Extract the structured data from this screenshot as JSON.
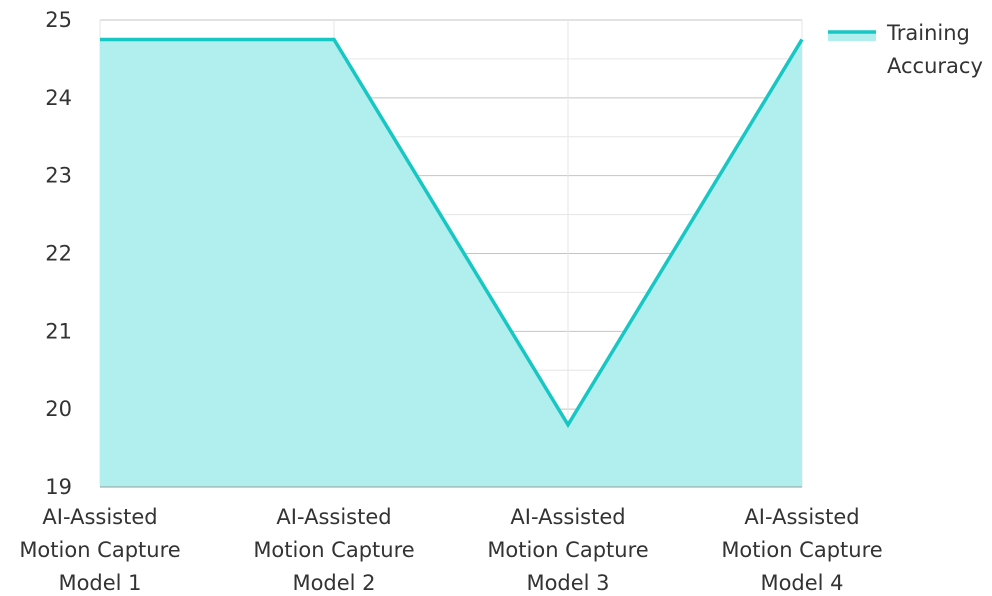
{
  "chart_data": {
    "type": "area",
    "categories": [
      "AI-Assisted Motion Capture Model 1",
      "AI-Assisted Motion Capture Model 2",
      "AI-Assisted Motion Capture Model 3",
      "AI-Assisted Motion Capture Model 4"
    ],
    "series": [
      {
        "name": "Training Accuracy",
        "values": [
          24.75,
          24.75,
          19.8,
          24.75
        ]
      }
    ],
    "ylim": [
      19,
      25
    ],
    "yticks": [
      19,
      20,
      21,
      22,
      23,
      24,
      25
    ],
    "grid": true,
    "legend_position": "top-right",
    "colors": {
      "line": "#17c7c4",
      "fill": "#b1eeee",
      "grid_major": "#c4c4c4",
      "grid_minor": "#e6e6e6",
      "text": "#333333"
    },
    "xlabel": "",
    "ylabel": "",
    "title": ""
  }
}
